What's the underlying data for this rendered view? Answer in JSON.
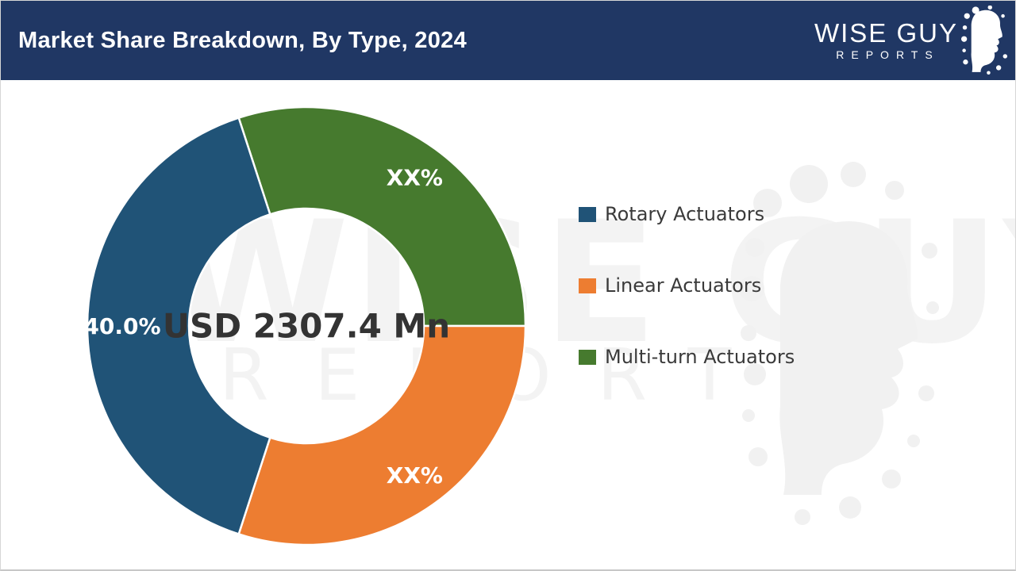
{
  "header": {
    "title": "Market Share Breakdown, By Type, 2024",
    "logo": {
      "brand": "WISE GUY",
      "brand_sub": "REPORTS"
    }
  },
  "watermark": {
    "line1": "WISE GUY",
    "line2": "REPORTS"
  },
  "chart_data": {
    "type": "donut",
    "center_label": "USD 2307.4 Mn",
    "start_angle_clock_deg": -18,
    "segments": [
      {
        "name": "Multi-turn Actuators",
        "pct": 30,
        "slice_label": "XX%",
        "color": "#467A2E"
      },
      {
        "name": "Linear Actuators",
        "pct": 30,
        "slice_label": "XX%",
        "color": "#ED7D31"
      },
      {
        "name": "Rotary Actuators",
        "pct": 40,
        "slice_label": "40.0%",
        "color": "#205377"
      }
    ],
    "legend": [
      {
        "label": "Rotary Actuators",
        "color": "#205377"
      },
      {
        "label": "Linear Actuators",
        "color": "#ED7D31"
      },
      {
        "label": "Multi-turn Actuators",
        "color": "#467A2E"
      }
    ],
    "legend_position": "right"
  },
  "colors": {
    "header_bg": "#203764",
    "center_text": "#333333",
    "legend_text": "#3A3A3A",
    "slice_label_text": "#FFFFFF",
    "watermark": "#F3F3F3"
  }
}
